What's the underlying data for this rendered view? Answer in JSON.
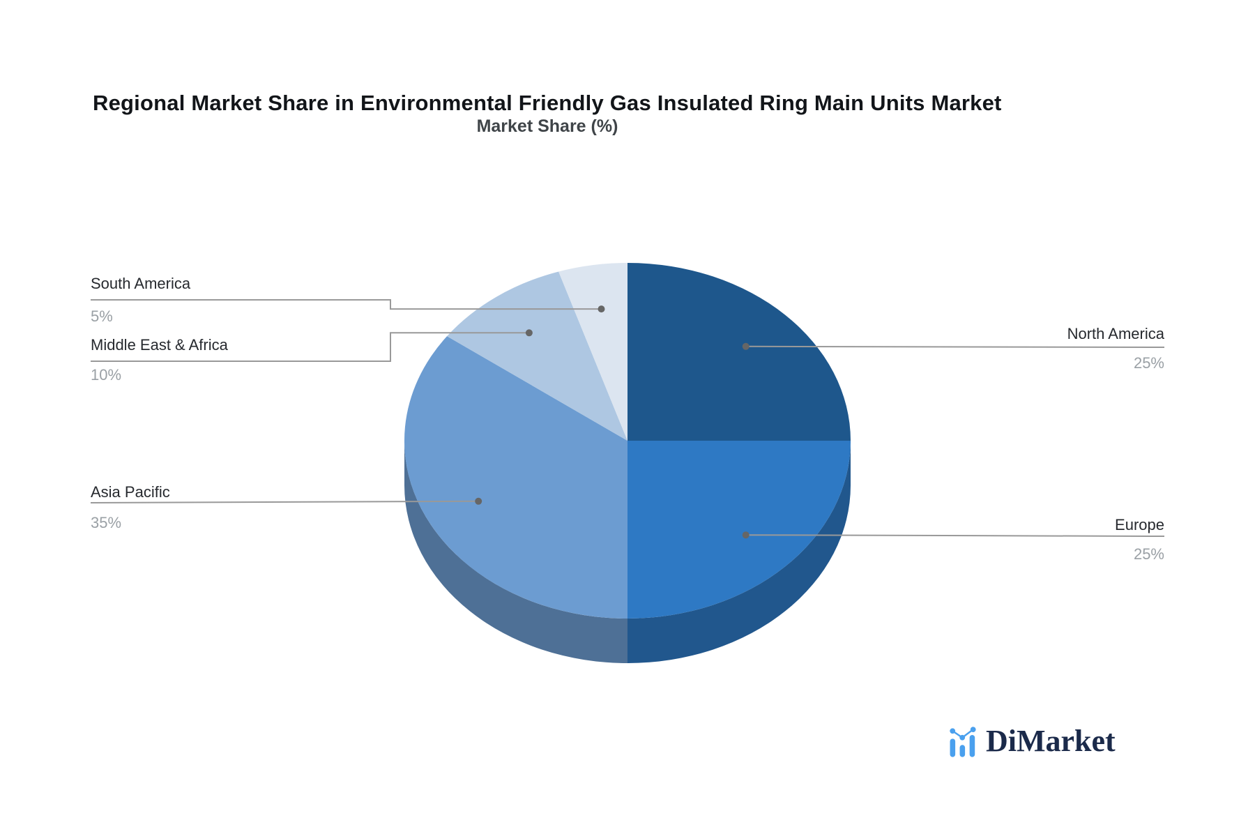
{
  "title": "Regional Market Share in Environmental Friendly Gas Insulated Ring Main Units Market",
  "subtitle": "Market Share (%)",
  "brand": {
    "name": "DiMarket"
  },
  "chart_data": {
    "type": "pie",
    "style": "3d",
    "title": "Regional Market Share in Environmental Friendly Gas Insulated Ring Main Units Market",
    "subtitle": "Market Share (%)",
    "unit": "percent",
    "direction": "clockwise",
    "start_angle_deg": 0,
    "legend_position": "none",
    "labels_style": "callout lines with region name above and percent below",
    "slices": [
      {
        "label": "North America",
        "value": 25,
        "pct": "25%",
        "color": "#1e578c",
        "callout_side": "right"
      },
      {
        "label": "Europe",
        "value": 25,
        "pct": "25%",
        "color": "#2e79c4",
        "callout_side": "right"
      },
      {
        "label": "Asia Pacific",
        "value": 35,
        "pct": "35%",
        "color": "#6c9cd1",
        "callout_side": "left"
      },
      {
        "label": "Middle East & Africa",
        "value": 10,
        "pct": "10%",
        "color": "#aec7e2",
        "callout_side": "left"
      },
      {
        "label": "South America",
        "value": 5,
        "pct": "5%",
        "color": "#dce5f0",
        "callout_side": "left"
      }
    ],
    "callout_line_color": "#999999",
    "callout_dot_color": "#666666",
    "label_text_color": "#26292e",
    "pct_text_color": "#9aa0a5",
    "background_color": "#ffffff",
    "logo_icon_color": "#4aa0ee",
    "logo_text_color": "#1b2a4a"
  }
}
